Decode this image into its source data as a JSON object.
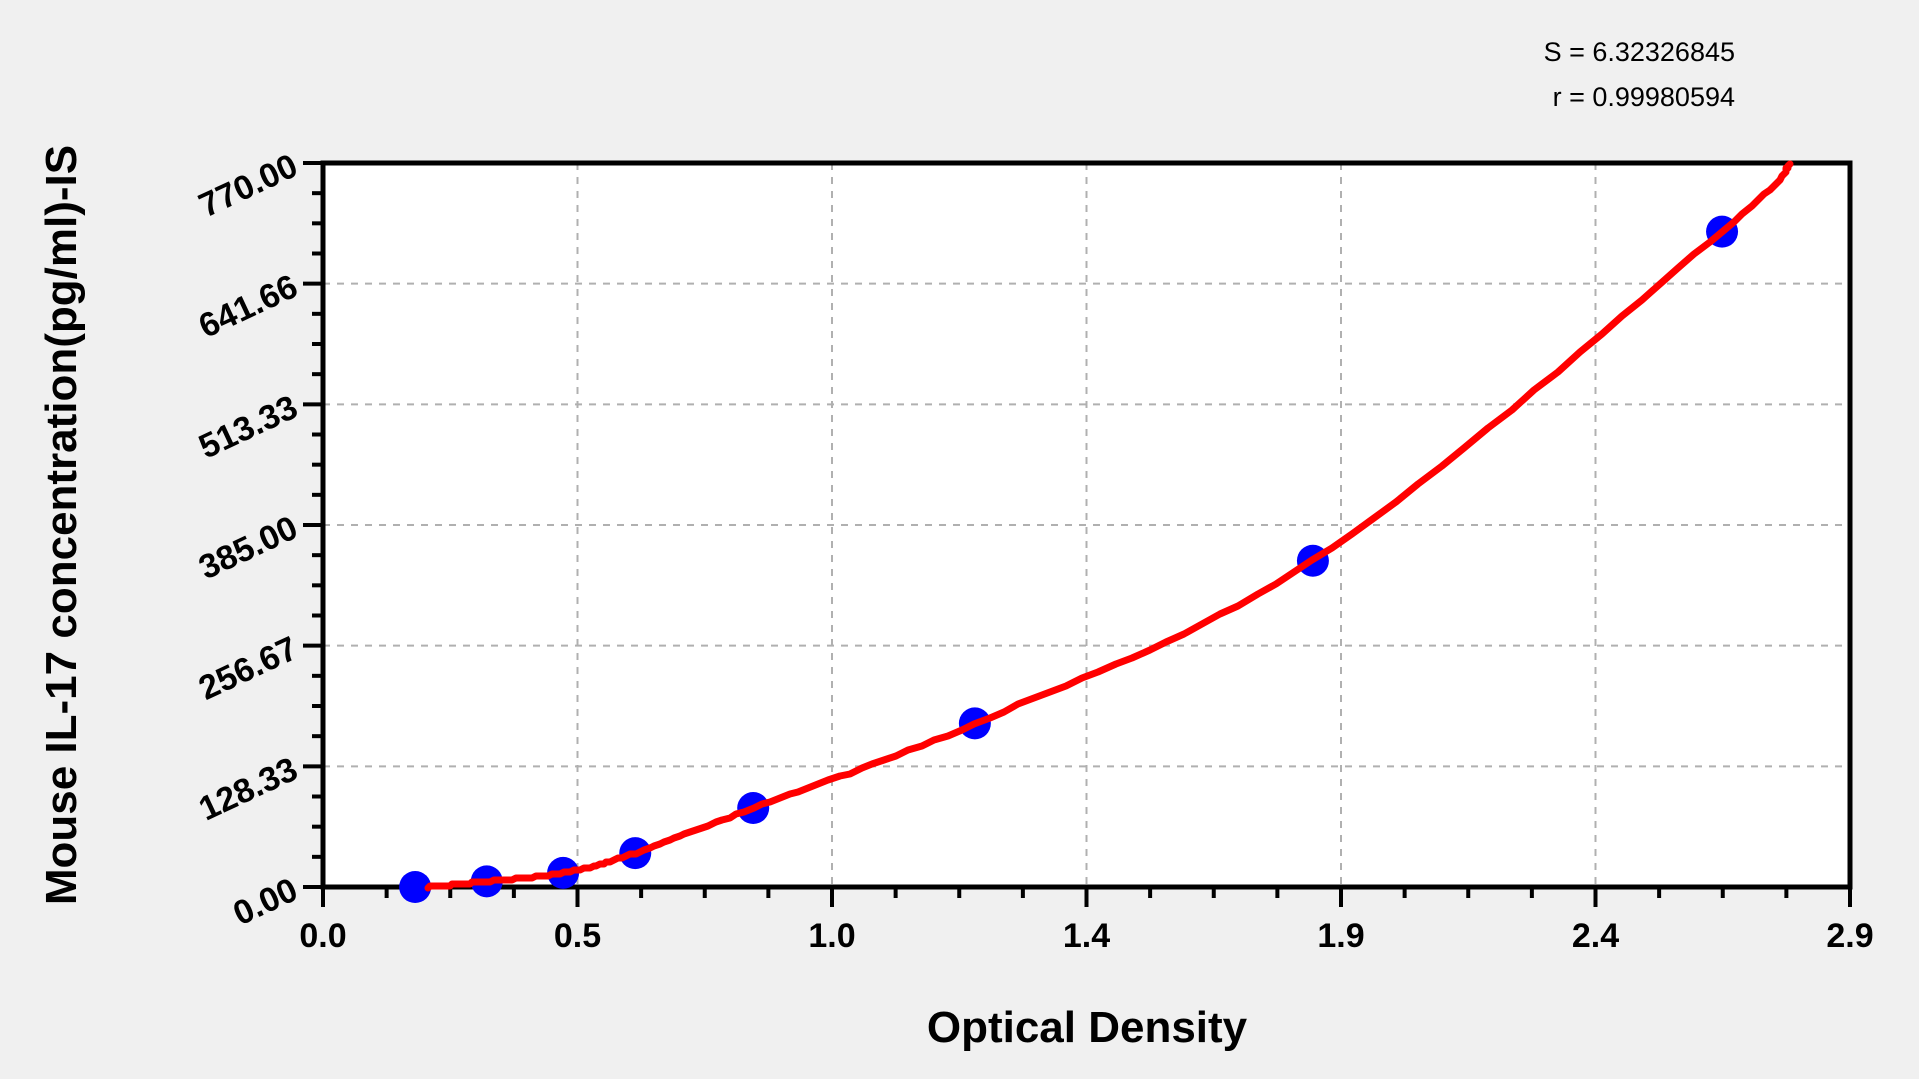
{
  "figure": {
    "y_axis_title": "Mouse IL-17 concentration(pg/ml)-IS",
    "x_axis_title": "Optical Density",
    "stats": {
      "s_line": "S = 6.32326845",
      "r_line": "r = 0.99980594"
    }
  },
  "chart_data": {
    "type": "scatter",
    "title": "",
    "xlabel": "Optical Density",
    "ylabel": "Mouse IL-17 concentration(pg/ml)-IS",
    "xlim": [
      0,
      2.9
    ],
    "ylim": [
      0,
      770
    ],
    "x_tick_labels": [
      "0.0",
      "0.5",
      "1.0",
      "1.4",
      "1.9",
      "2.4",
      "2.9"
    ],
    "y_tick_labels": [
      "0.00",
      "128.33",
      "256.67",
      "385.00",
      "513.33",
      "641.66",
      "770.00"
    ],
    "x_minor_ticks_per_interval": 3,
    "y_minor_ticks_per_interval": 3,
    "grid": {
      "show": true,
      "style": "dashed",
      "on": "major-ticks"
    },
    "legend": null,
    "y_tick_label_rotation_deg": -25,
    "series": [
      {
        "name": "standard points",
        "type": "scatter",
        "x": [
          0.175,
          0.311,
          0.456,
          0.593,
          0.817,
          1.238,
          1.88,
          2.657
        ],
        "y": [
          0,
          6,
          15,
          36,
          84,
          174,
          347,
          697
        ]
      },
      {
        "name": "fitted curve",
        "type": "line",
        "x": [
          0.2,
          0.311,
          0.456,
          0.593,
          0.817,
          1.238,
          1.88,
          2.657,
          2.787
        ],
        "y": [
          0,
          6,
          15,
          36,
          84,
          174,
          347,
          697,
          770
        ]
      }
    ],
    "annotations": {
      "S": "6.32326845",
      "r": "0.99980594"
    }
  },
  "colors": {
    "background": "#f0f0f0",
    "plot_background": "#ffffff",
    "axis": "#000000",
    "point": "#0000ff",
    "curve": "#ff0000",
    "grid": "#b0b0b0"
  }
}
